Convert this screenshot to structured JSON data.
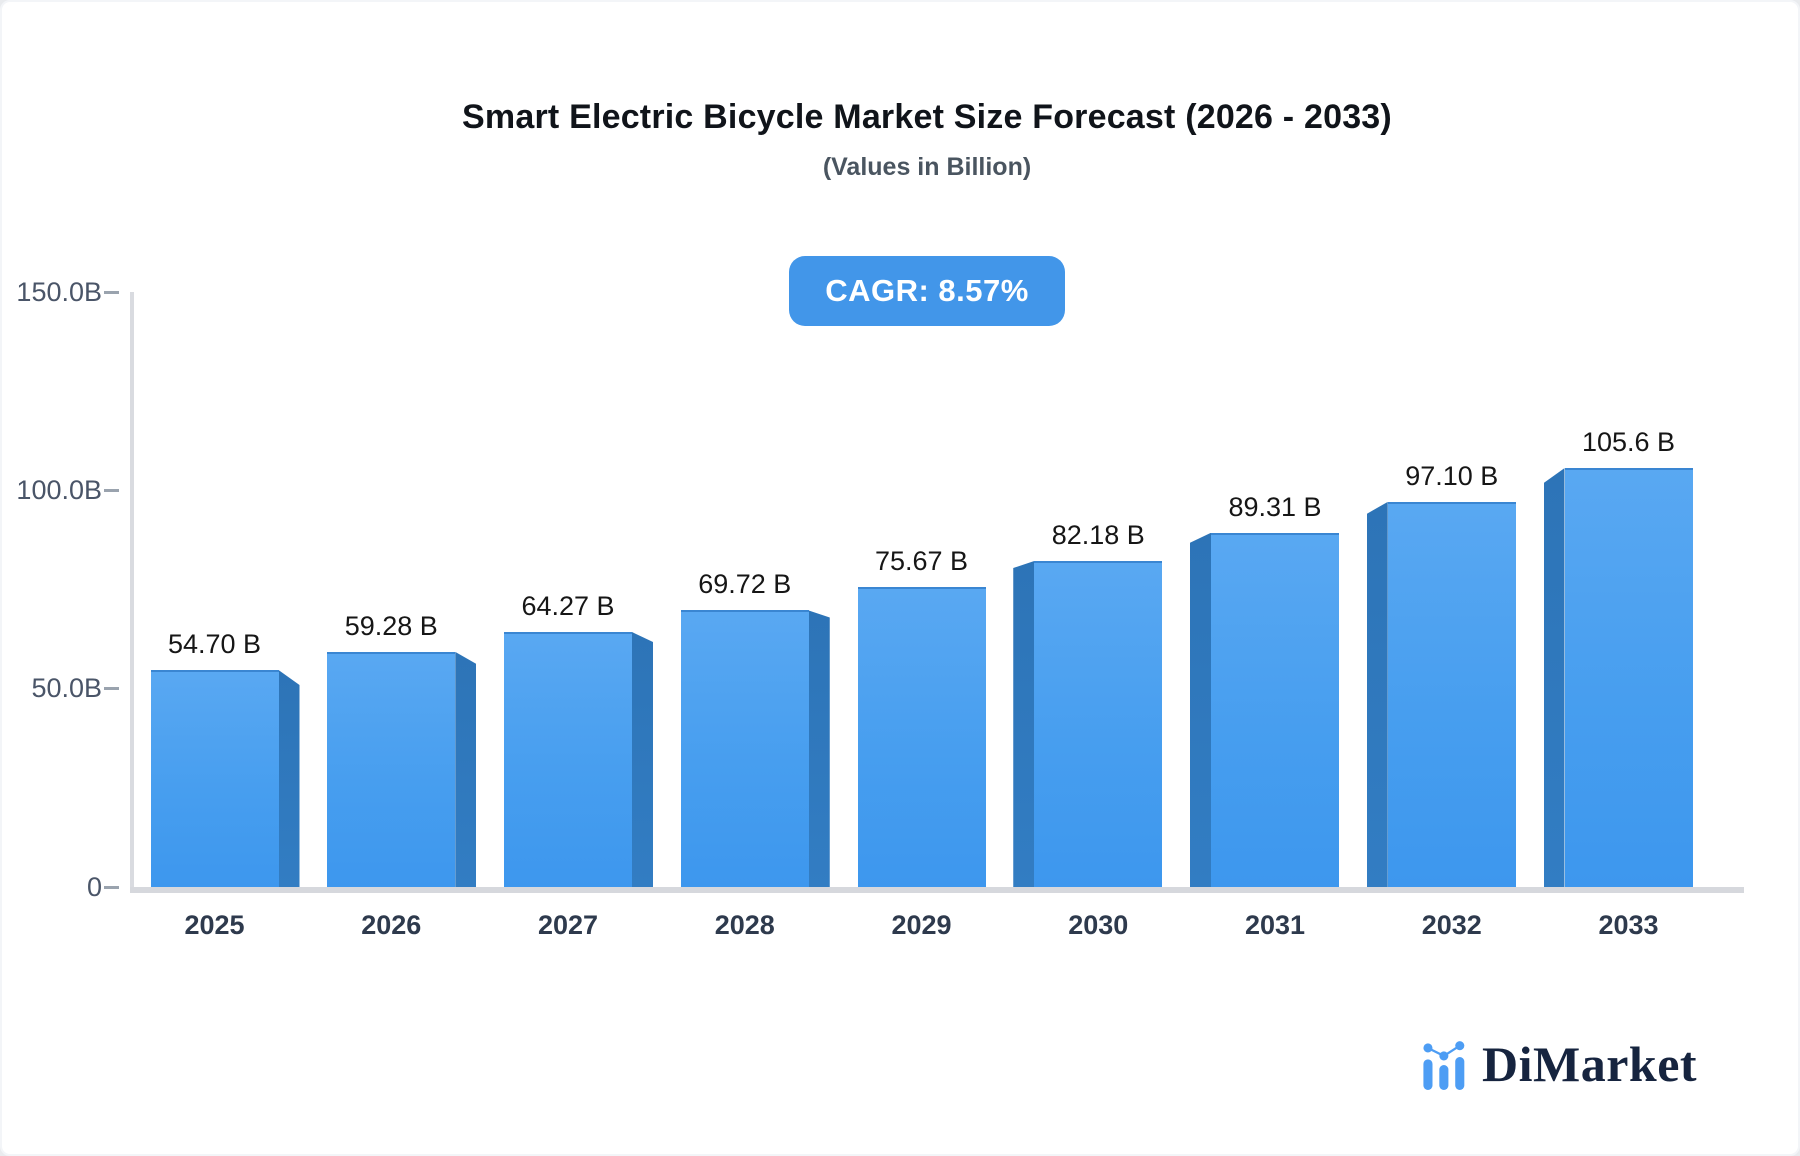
{
  "header": {
    "title": "Smart Electric Bicycle Market Size Forecast (2026 - 2033)",
    "subtitle": "(Values in Billion)"
  },
  "badge": {
    "label": "CAGR: 8.57%"
  },
  "chart_data": {
    "type": "bar",
    "title": "Smart Electric Bicycle Market Size Forecast (2026 - 2033)",
    "subtitle": "(Values in Billion)",
    "categories": [
      "2025",
      "2026",
      "2027",
      "2028",
      "2029",
      "2030",
      "2031",
      "2032",
      "2033"
    ],
    "values": [
      54.7,
      59.28,
      64.27,
      69.72,
      75.67,
      82.18,
      89.31,
      97.1,
      105.6
    ],
    "bar_labels": [
      "54.70 B",
      "59.28 B",
      "64.27 B",
      "69.72 B",
      "75.67 B",
      "82.18 B",
      "89.31 B",
      "97.10 B",
      "105.6 B"
    ],
    "y_tick_labels": [
      "150.0B",
      "100.0B",
      "50.0B",
      "0"
    ],
    "y_tick_values": [
      150,
      100,
      50,
      0
    ],
    "ylim": [
      0,
      150
    ],
    "xlabel": "",
    "ylabel": "",
    "grid": "off",
    "legend": "none",
    "style": "pseudo-3d bars, perspective vanishing at center bar"
  },
  "logo": {
    "name": "DiMarket"
  },
  "colors": {
    "badge_blue": "#4296e9",
    "bar_face_top": "#59a8f2",
    "bar_face_bottom": "#3d97ee",
    "bar_side": "#2f78bd",
    "axis_gray": "#d6d8dd",
    "y_label_gray": "#4a5568",
    "x_label_dark": "#2e3a4d",
    "value_label": "#161616",
    "logo_navy": "#16243f",
    "logo_blue": "#4d9df4"
  }
}
